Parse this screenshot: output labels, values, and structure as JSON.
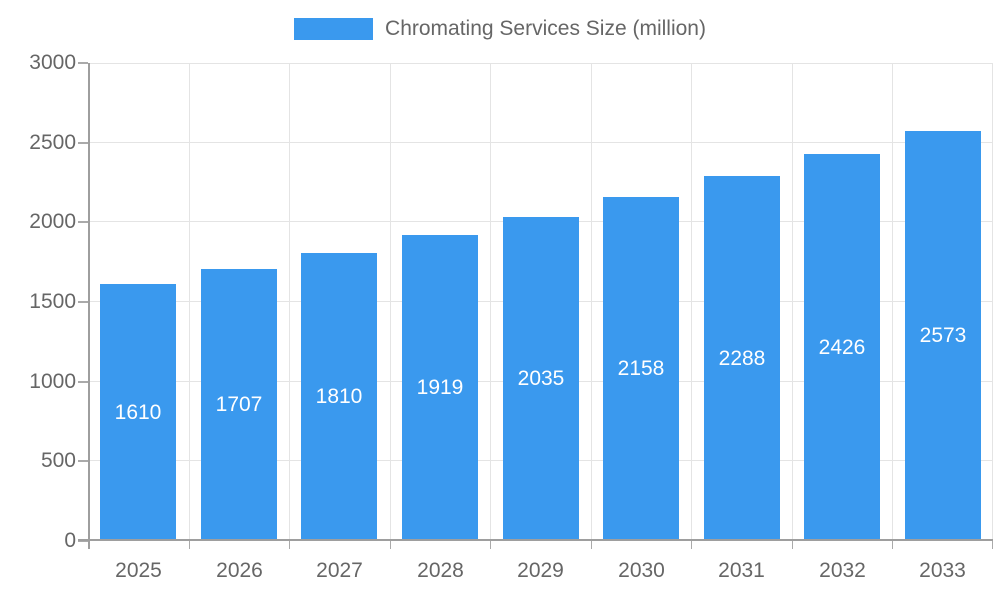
{
  "chart_data": {
    "type": "bar",
    "title": "Chromating Services Size (million)",
    "legend": {
      "label": "Chromating Services Size (million)",
      "position": "top-center"
    },
    "categories": [
      "2025",
      "2026",
      "2027",
      "2028",
      "2029",
      "2030",
      "2031",
      "2032",
      "2033"
    ],
    "values": [
      1610,
      1707,
      1810,
      1919,
      2035,
      2158,
      2288,
      2426,
      2573
    ],
    "xlabel": "",
    "ylabel": "",
    "ylim": [
      0,
      3000
    ],
    "yticks": [
      0,
      500,
      1000,
      1500,
      2000,
      2500,
      3000
    ],
    "grid": true,
    "bar_labels_inside": true
  },
  "colors": {
    "bar": "#3A99EE",
    "grid": "#e4e4e4",
    "axis": "#9e9e9e",
    "tick": "#aaaaaa",
    "text": "#666666",
    "bar_label": "#ffffff",
    "background": "#ffffff"
  }
}
